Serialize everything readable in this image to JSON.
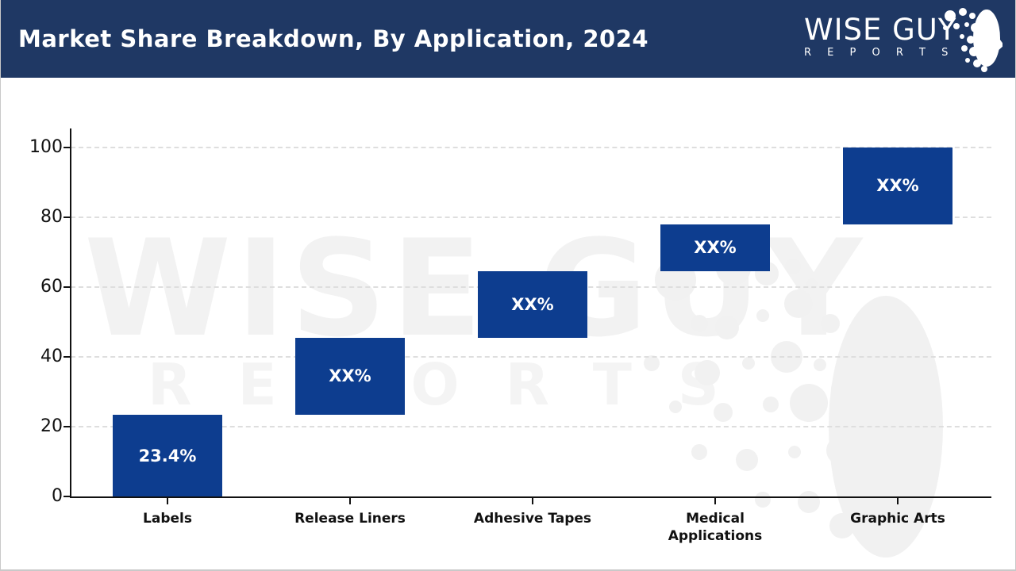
{
  "header": {
    "title": "Market Share Breakdown, By Application, 2024",
    "bg_color": "#1f3864",
    "logo": {
      "line1": "WISE GUY",
      "line2": "REPORTS"
    }
  },
  "watermark": {
    "line1": "WISE GUY",
    "line2": "REPORTS"
  },
  "chart_data": {
    "type": "bar",
    "variant": "waterfall",
    "title": "Market Share Breakdown, By Application, 2024",
    "categories": [
      "Labels",
      "Release Liners",
      "Adhesive Tapes",
      "Medical Applications",
      "Graphic Arts"
    ],
    "segments": [
      {
        "category": "Labels",
        "start": 0,
        "end": 23.4,
        "label": "23.4%"
      },
      {
        "category": "Release Liners",
        "start": 23.4,
        "end": 45.5,
        "label": "XX%"
      },
      {
        "category": "Adhesive Tapes",
        "start": 45.5,
        "end": 64.5,
        "label": "XX%"
      },
      {
        "category": "Medical Applications",
        "start": 64.5,
        "end": 78,
        "label": "XX%"
      },
      {
        "category": "Graphic Arts",
        "start": 78,
        "end": 100,
        "label": "XX%"
      }
    ],
    "xlabel": "",
    "ylabel": "",
    "ylim": [
      0,
      105
    ],
    "yticks": [
      0,
      20,
      40,
      60,
      80,
      100
    ],
    "grid": "horizontal-dashed",
    "legend": "none",
    "colors": {
      "bar": "#0d3d8f",
      "bar_label": "#ffffff",
      "header_bg": "#1f3864",
      "grid": "#dedede",
      "axis": "#111111",
      "watermark": "#f2f2f2"
    }
  }
}
